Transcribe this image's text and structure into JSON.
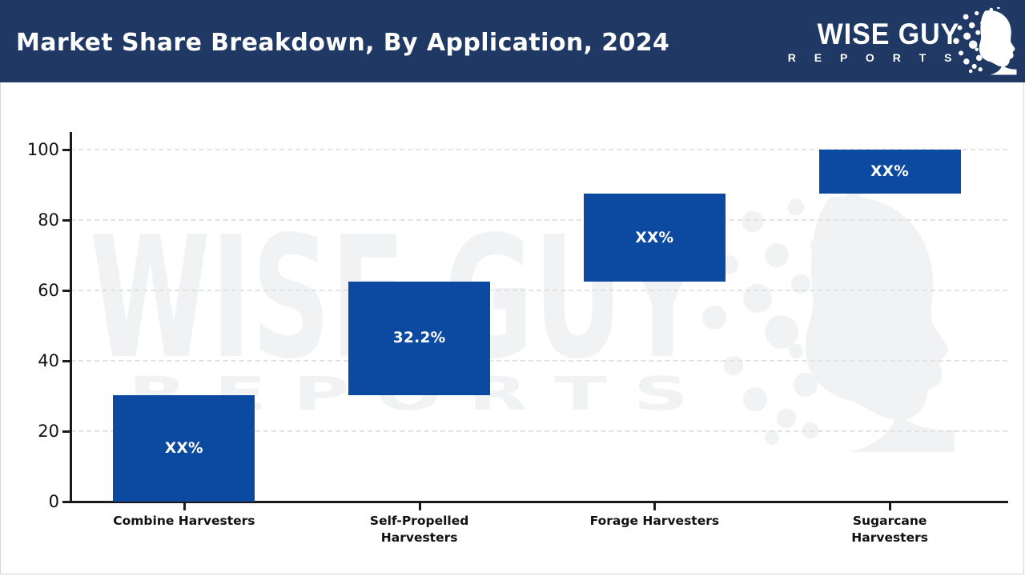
{
  "header": {
    "title": "Market Share Breakdown, By Application, 2024",
    "logo": {
      "primary": "WISE GUY",
      "secondary": "R E P O R T S"
    }
  },
  "watermark": {
    "primary": "WISE GUY",
    "secondary": "R  E  P  O  R  T  S"
  },
  "chart_data": {
    "type": "bar",
    "subtype": "floating-cumulative-bars",
    "title": "Market Share Breakdown, By Application, 2024",
    "categories": [
      "Combine Harvesters",
      "Self-Propelled Harvesters",
      "Forage Harvesters",
      "Sugarcane Harvesters"
    ],
    "segments": [
      {
        "category": "Combine Harvesters",
        "tick_label": "Combine Harvesters",
        "start": 0,
        "end": 30.3,
        "value": 30.3,
        "label": "XX%"
      },
      {
        "category": "Self-Propelled Harvesters",
        "tick_label": "Self-Propelled\nHarvesters",
        "start": 30.3,
        "end": 62.5,
        "value": 32.2,
        "label": "32.2%"
      },
      {
        "category": "Forage Harvesters",
        "tick_label": "Forage Harvesters",
        "start": 62.5,
        "end": 87.5,
        "value": 25.0,
        "label": "XX%"
      },
      {
        "category": "Sugarcane Harvesters",
        "tick_label": "Sugarcane\nHarvesters",
        "start": 87.5,
        "end": 100,
        "value": 12.5,
        "label": "XX%"
      }
    ],
    "xlabel": "",
    "ylabel": "",
    "ylim": [
      0,
      100
    ],
    "yticks": [
      0,
      20,
      40,
      60,
      80,
      100
    ],
    "grid": "horizontal-dashed",
    "legend": "none",
    "bar_color": "#0b4aa0",
    "bar_label_color": "#ffffff",
    "header_bg_color": "#1f3864",
    "axis_color": "#1a1a1a",
    "gridline_color": "#e2e2e2",
    "watermark_color": "#f1f2f4"
  }
}
